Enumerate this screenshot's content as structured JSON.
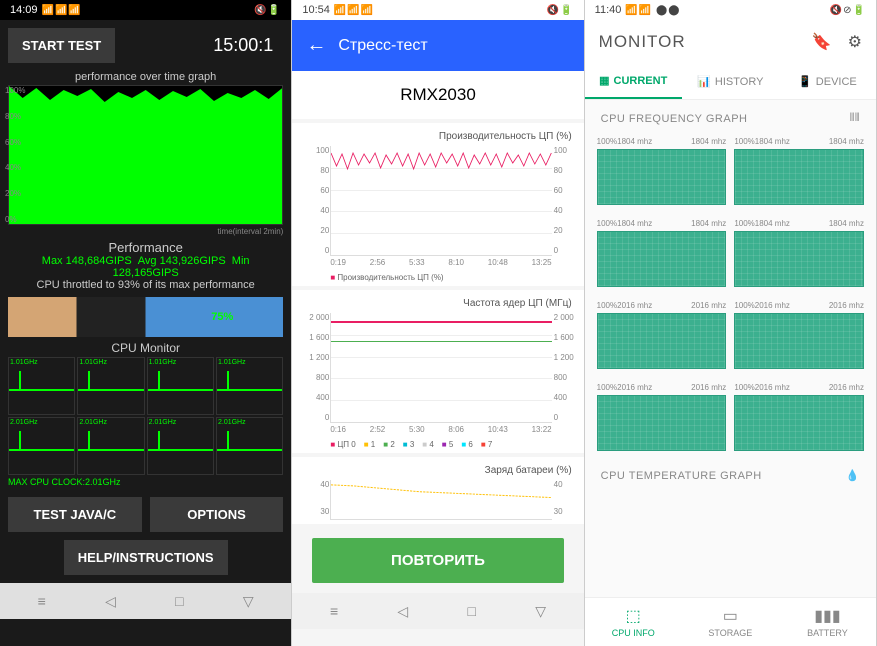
{
  "p1": {
    "time": "14:09",
    "start_btn": "START TEST",
    "timer": "15:00:1",
    "graph_title": "performance over time graph",
    "y_labels": [
      "100%",
      "80%",
      "60%",
      "40%",
      "20%",
      "0%"
    ],
    "time_axis": "time(interval 2min)",
    "perf_title": "Performance",
    "perf_max": "Max 148,684GIPS",
    "perf_avg": "Avg 143,926GIPS",
    "perf_min": "Min 128,165GIPS",
    "throttle": "CPU throttled to 93% of its max performance",
    "ad_pct": "75%",
    "cpu_mon": "CPU Monitor",
    "cpu_freq_top": "1.01GHz",
    "cpu_freq_bot": "2.01GHz",
    "max_clock": "MAX CPU CLOCK:2.01GHz",
    "test_btn": "TEST JAVA/C",
    "options_btn": "OPTIONS",
    "help_btn": "HELP/INSTRUCTIONS"
  },
  "p2": {
    "time": "10:54",
    "title": "Стресс-тест",
    "device": "RMX2030",
    "chart1_label": "Производительность ЦП (%)",
    "chart1_y": [
      "100",
      "80",
      "60",
      "40",
      "20",
      "0"
    ],
    "chart1_x": [
      "0:19",
      "2:56",
      "5:33",
      "8:10",
      "10:48",
      "13:25"
    ],
    "chart1_legend": "Производительность ЦП (%)",
    "chart2_label": "Частота ядер ЦП (МГц)",
    "chart2_y": [
      "2 000",
      "1 600",
      "1 200",
      "800",
      "400",
      "0"
    ],
    "chart2_x": [
      "0:16",
      "2:52",
      "5:30",
      "8:06",
      "10:43",
      "13:22"
    ],
    "cpu_cores": [
      "ЦП 0",
      "1",
      "2",
      "3",
      "4",
      "5",
      "6",
      "7"
    ],
    "chart3_label": "Заряд батареи (%)",
    "chart3_y": [
      "40",
      "30"
    ],
    "repeat": "ПОВТОРИТЬ"
  },
  "p3": {
    "time": "11:40",
    "title": "MONITOR",
    "tabs": {
      "current": "CURRENT",
      "history": "HISTORY",
      "device": "DEVICE"
    },
    "freq_title": "CPU FREQUENCY GRAPH",
    "temp_title": "CPU TEMPERATURE GRAPH",
    "cells": [
      {
        "pct": "100%",
        "cur": "1804 mhz",
        "max": "1804 mhz"
      },
      {
        "pct": "100%",
        "cur": "1804 mhz",
        "max": "1804 mhz"
      },
      {
        "pct": "100%",
        "cur": "1804 mhz",
        "max": "1804 mhz"
      },
      {
        "pct": "100%",
        "cur": "1804 mhz",
        "max": "1804 mhz"
      },
      {
        "pct": "100%",
        "cur": "2016 mhz",
        "max": "2016 mhz"
      },
      {
        "pct": "100%",
        "cur": "2016 mhz",
        "max": "2016 mhz"
      },
      {
        "pct": "100%",
        "cur": "2016 mhz",
        "max": "2016 mhz"
      },
      {
        "pct": "100%",
        "cur": "2016 mhz",
        "max": "2016 mhz"
      }
    ],
    "bottom": {
      "cpu": "CPU INFO",
      "storage": "STORAGE",
      "battery": "BATTERY"
    }
  }
}
